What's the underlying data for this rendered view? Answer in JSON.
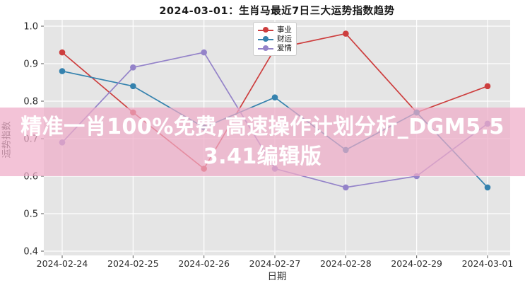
{
  "title": "2024-03-01：生肖马最近7日三大运势指数趋势",
  "overlay": {
    "line1": "精准一肖100%免费,高速操作计划分析_DGM5.5",
    "line2": "3.41编辑版",
    "text_color": "#ffffff",
    "band_color": "rgba(238,172,199,0.72)"
  },
  "chart_data": {
    "type": "line",
    "title": "2024-03-01：生肖马最近7日三大运势指数趋势",
    "x": [
      "2024-02-24",
      "2024-02-25",
      "2024-02-26",
      "2024-02-27",
      "2024-02-28",
      "2024-02-29",
      "2024-03-01"
    ],
    "series": [
      {
        "name": "事业",
        "color": "#cd3e3e",
        "values": [
          0.93,
          0.77,
          0.62,
          0.94,
          0.98,
          0.77,
          0.84
        ]
      },
      {
        "name": "财运",
        "color": "#3582ae",
        "values": [
          0.88,
          0.84,
          0.73,
          0.81,
          0.67,
          0.77,
          0.57
        ]
      },
      {
        "name": "爱情",
        "color": "#9483c9",
        "values": [
          0.69,
          0.89,
          0.93,
          0.62,
          0.57,
          0.6,
          0.74
        ]
      }
    ],
    "xlabel": "日期",
    "ylabel": "运势指数",
    "ylim": [
      0.4,
      1.0
    ],
    "yticks": [
      1.0,
      0.9,
      0.8,
      0.7,
      0.6,
      0.5,
      0.4
    ],
    "grid": true,
    "plot_bg": "#e5e5e5",
    "grid_color": "#ffffff",
    "legend_position": "top-center",
    "legend_entries": [
      "事业",
      "财运",
      "爱情"
    ]
  }
}
